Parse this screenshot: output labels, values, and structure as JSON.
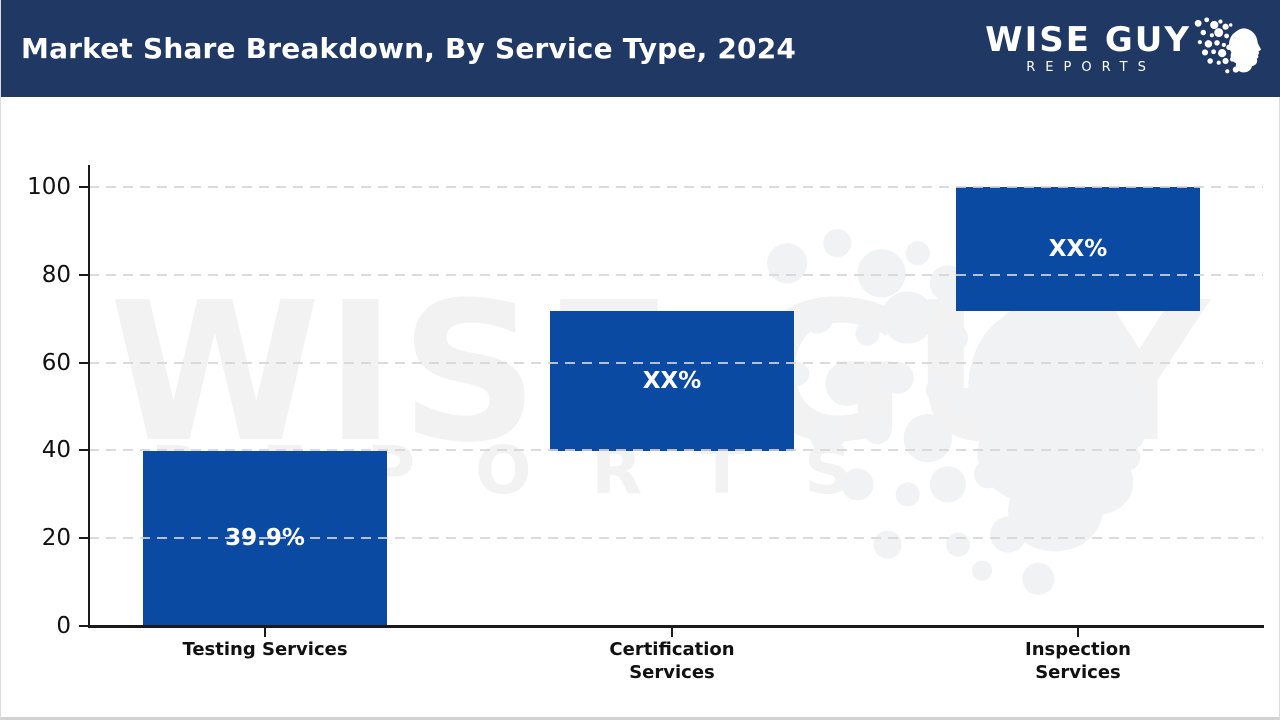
{
  "header": {
    "title": "Market Share Breakdown, By Service Type, 2024",
    "logo": {
      "line1": "WISE GUY",
      "line2": "REPORTS"
    }
  },
  "watermark": {
    "line1": "WISE GUY",
    "line2": "REPORTS"
  },
  "chart_data": {
    "type": "bar",
    "subtype": "floating-segment-breakdown",
    "title": "Market Share Breakdown, By Service Type, 2024",
    "categories": [
      "Testing Services",
      "Certification Services",
      "Inspection Services"
    ],
    "categories_display": [
      [
        "Testing Services"
      ],
      [
        "Certification",
        "Services"
      ],
      [
        "Inspection",
        "Services"
      ]
    ],
    "series": [
      {
        "name": "Testing Services",
        "from": 0,
        "to": 39.9,
        "label": "39.9%"
      },
      {
        "name": "Certification Services",
        "from": 39.9,
        "to": 71.8,
        "label": "XX%"
      },
      {
        "name": "Inspection Services",
        "from": 71.8,
        "to": 100,
        "label": "XX%"
      }
    ],
    "ylim": [
      0,
      100
    ],
    "yticks": [
      0,
      20,
      40,
      60,
      80,
      100
    ],
    "xlabel": "",
    "ylabel": "",
    "grid": "horizontal-dashed",
    "legend": "none",
    "bar_color": "#0b4aa2",
    "bar_label_color": "#ffffff",
    "axis_color": "#1a1a1a",
    "grid_color": "#d5d5d5",
    "watermark_color": "#f2f2f2",
    "header_bg_color": "#203864"
  }
}
